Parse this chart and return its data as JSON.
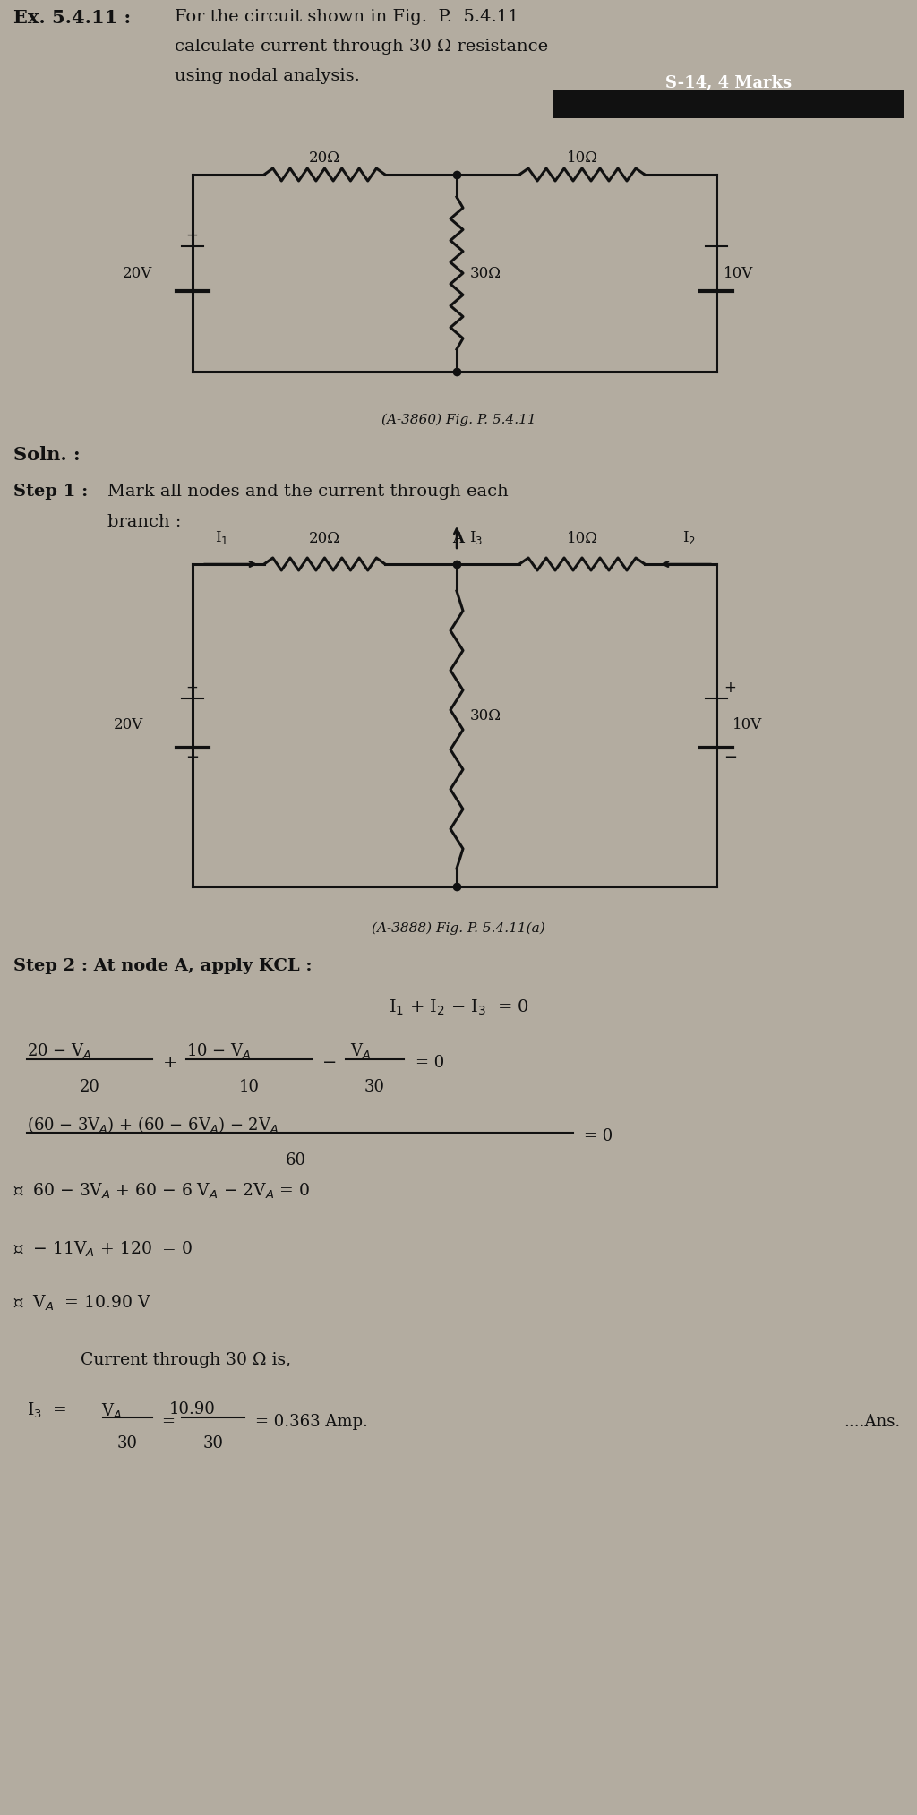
{
  "bg_color": "#b3aca0",
  "marks_label": "S-14, 4 Marks",
  "fig1_caption": "(A-3860) Fig. P. 5.4.11",
  "fig2_caption": "(A-3888) Fig. P. 5.4.11(a)",
  "text_color": "#1a1a1a",
  "dark_color": "#111111",
  "white": "#ffffff",
  "black_box": "#111111"
}
